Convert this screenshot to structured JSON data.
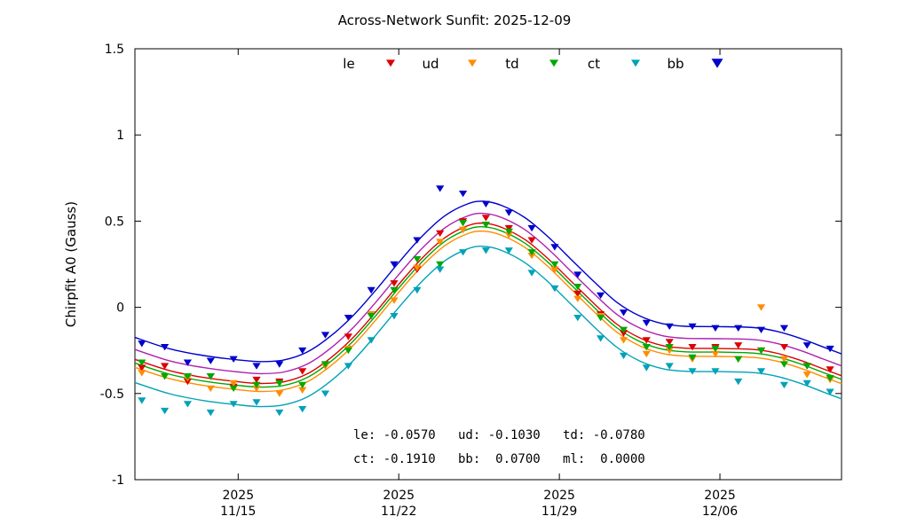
{
  "title": "Across-Network Sunfit: 2025-12-09",
  "axes": {
    "ylabel": "Chirpfit A0 (Gauss)"
  },
  "annotations": {
    "line1": "le: -0.0570   ud: -0.1030   td: -0.0780",
    "line2": "ct: -0.1910   bb:  0.0700   ml:  0.0000"
  },
  "chart_data": {
    "type": "scatter",
    "title": "Across-Network Sunfit: 2025-12-09",
    "ylabel": "Chirpfit A0 (Gauss)",
    "ylim": [
      -1,
      1.5
    ],
    "xlim": [
      0.5,
      31.3
    ],
    "x_unit": "days since 2025-11-10",
    "grid": false,
    "legend_position": "top-center-inside",
    "yticks": [
      {
        "v": -1,
        "label": "-1"
      },
      {
        "v": -0.5,
        "label": "-0.5"
      },
      {
        "v": 0,
        "label": "0"
      },
      {
        "v": 0.5,
        "label": "0.5"
      },
      {
        "v": 1,
        "label": "1"
      },
      {
        "v": 1.5,
        "label": "1.5"
      }
    ],
    "xticks": [
      {
        "t": 5,
        "year": "2025",
        "date": "11/15"
      },
      {
        "t": 12,
        "year": "2025",
        "date": "11/22"
      },
      {
        "t": 19,
        "year": "2025",
        "date": "11/29"
      },
      {
        "t": 26,
        "year": "2025",
        "date": "12/06"
      }
    ],
    "legend": [
      {
        "name": "le",
        "color": "#dd0000",
        "size": 5
      },
      {
        "name": "ud",
        "color": "#ff8c00",
        "size": 5
      },
      {
        "name": "td",
        "color": "#00a800",
        "size": 5
      },
      {
        "name": "ct",
        "color": "#00a2b8",
        "size": 5
      },
      {
        "name": "bb",
        "color": "#0000cc",
        "size": 6.5
      }
    ],
    "base_curve": [
      [
        0.5,
        -0.245
      ],
      [
        2,
        -0.31
      ],
      [
        3.5,
        -0.35
      ],
      [
        5,
        -0.375
      ],
      [
        6,
        -0.385
      ],
      [
        7,
        -0.375
      ],
      [
        8,
        -0.33
      ],
      [
        9,
        -0.24
      ],
      [
        10,
        -0.12
      ],
      [
        11,
        0.03
      ],
      [
        12,
        0.19
      ],
      [
        13,
        0.34
      ],
      [
        14,
        0.46
      ],
      [
        15,
        0.53
      ],
      [
        15.7,
        0.545
      ],
      [
        16.5,
        0.52
      ],
      [
        17.5,
        0.45
      ],
      [
        18.5,
        0.34
      ],
      [
        19.5,
        0.21
      ],
      [
        20.5,
        0.08
      ],
      [
        21.5,
        -0.04
      ],
      [
        22.5,
        -0.12
      ],
      [
        23.5,
        -0.165
      ],
      [
        24.5,
        -0.18
      ],
      [
        26,
        -0.182
      ],
      [
        27.5,
        -0.188
      ],
      [
        28.5,
        -0.21
      ],
      [
        29.5,
        -0.25
      ],
      [
        30.5,
        -0.3
      ],
      [
        31.3,
        -0.34
      ]
    ],
    "curves": [
      {
        "name": "ct",
        "offset": -0.191,
        "color": "#00a2b8"
      },
      {
        "name": "ud",
        "offset": -0.103,
        "color": "#ff8c00"
      },
      {
        "name": "td",
        "offset": -0.078,
        "color": "#00a800"
      },
      {
        "name": "le",
        "offset": -0.057,
        "color": "#dd0000"
      },
      {
        "name": "ml",
        "offset": 0.0,
        "color": "#b020b0"
      },
      {
        "name": "bb",
        "offset": 0.07,
        "color": "#0000cc"
      }
    ],
    "fit_offsets": {
      "le": -0.057,
      "ud": -0.103,
      "td": -0.078,
      "ct": -0.191,
      "bb": 0.07,
      "ml": 0.0
    },
    "scatter_t": [
      0.8,
      1.8,
      2.8,
      3.8,
      4.8,
      5.8,
      6.8,
      7.8,
      8.8,
      9.8,
      10.8,
      11.8,
      12.8,
      13.8,
      14.8,
      15.8,
      16.8,
      17.8,
      18.8,
      19.8,
      20.8,
      21.8,
      22.8,
      23.8,
      24.8,
      25.8,
      26.8,
      27.8,
      28.8,
      29.8,
      30.8
    ],
    "series": [
      {
        "name": "le",
        "color": "#dd0000",
        "values": [
          -0.35,
          -0.34,
          -0.43,
          -0.4,
          -0.46,
          -0.42,
          -0.43,
          -0.37,
          -0.34,
          -0.17,
          -0.04,
          0.14,
          0.22,
          0.43,
          0.5,
          0.52,
          0.46,
          0.39,
          0.22,
          0.08,
          -0.04,
          -0.15,
          -0.19,
          -0.2,
          -0.23,
          -0.23,
          -0.22,
          -0.25,
          -0.23,
          -0.34,
          -0.36
        ]
      },
      {
        "name": "ud",
        "color": "#ff8c00",
        "values": [
          -0.38,
          -0.4,
          -0.41,
          -0.47,
          -0.44,
          -0.47,
          -0.5,
          -0.48,
          -0.34,
          -0.24,
          -0.04,
          0.04,
          0.23,
          0.38,
          0.45,
          0.48,
          0.42,
          0.3,
          0.22,
          0.05,
          -0.05,
          -0.19,
          -0.27,
          -0.25,
          -0.3,
          -0.27,
          -0.3,
          0.0,
          -0.3,
          -0.39,
          -0.42
        ]
      },
      {
        "name": "td",
        "color": "#00a800",
        "values": [
          -0.32,
          -0.4,
          -0.4,
          -0.4,
          -0.47,
          -0.45,
          -0.44,
          -0.45,
          -0.33,
          -0.25,
          -0.05,
          0.1,
          0.28,
          0.25,
          0.49,
          0.48,
          0.44,
          0.32,
          0.25,
          0.12,
          -0.06,
          -0.13,
          -0.23,
          -0.23,
          -0.29,
          -0.24,
          -0.3,
          -0.25,
          -0.33,
          -0.34,
          -0.41
        ]
      },
      {
        "name": "ct",
        "color": "#00a2b8",
        "values": [
          -0.54,
          -0.6,
          -0.56,
          -0.61,
          -0.56,
          -0.55,
          -0.61,
          -0.59,
          -0.5,
          -0.34,
          -0.19,
          -0.05,
          0.1,
          0.22,
          0.32,
          0.33,
          0.33,
          0.2,
          0.11,
          -0.06,
          -0.18,
          -0.28,
          -0.35,
          -0.34,
          -0.37,
          -0.37,
          -0.43,
          -0.37,
          -0.45,
          -0.44,
          -0.49
        ]
      },
      {
        "name": "bb",
        "color": "#0000cc",
        "values": [
          -0.21,
          -0.23,
          -0.32,
          -0.31,
          -0.3,
          -0.34,
          -0.33,
          -0.25,
          -0.16,
          -0.06,
          0.1,
          0.25,
          0.39,
          0.69,
          0.66,
          0.6,
          0.55,
          0.46,
          0.35,
          0.19,
          0.07,
          -0.03,
          -0.09,
          -0.11,
          -0.11,
          -0.12,
          -0.12,
          -0.13,
          -0.12,
          -0.22,
          -0.24
        ]
      }
    ]
  }
}
